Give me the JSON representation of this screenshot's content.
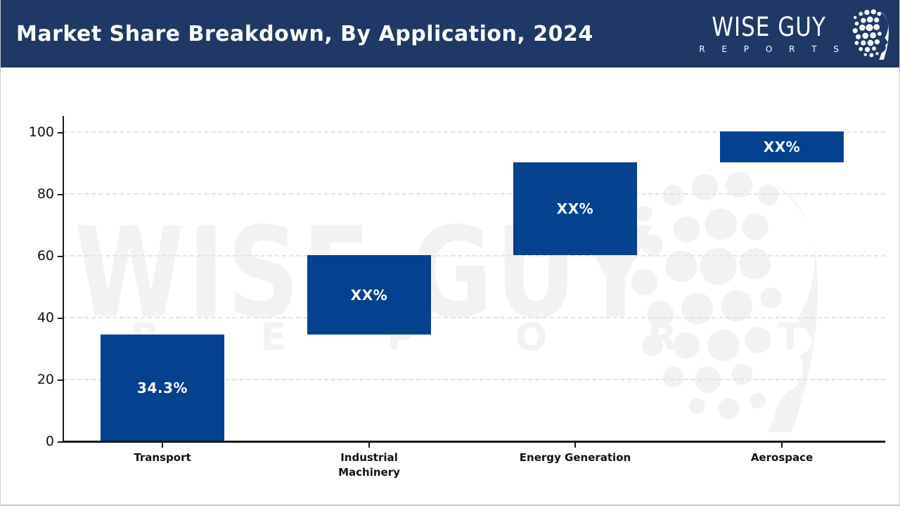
{
  "header": {
    "title": "Market Share Breakdown, By Application, 2024",
    "logo": {
      "name": "WISE GUY",
      "tagline": "R E P O R T S",
      "head_icon": "dotted-head-profile"
    }
  },
  "watermark": {
    "line1": "WISE GUY",
    "line2": "R E P O R T S",
    "head_icon": "dotted-head-profile"
  },
  "colors": {
    "header_bg": "#1f3866",
    "bar": "#04418f",
    "bar_label": "#ffffff",
    "gridline": "#e2e2e2",
    "axis": "#1a1a1a",
    "watermark": "#f2f2f3",
    "page_bg": "#ffffff"
  },
  "chart_data": {
    "type": "bar",
    "variant": "waterfall",
    "title": "Market Share Breakdown, By Application, 2024",
    "categories": [
      "Transport",
      "Industrial\nMachinery",
      "Energy Generation",
      "Aerospace"
    ],
    "segments": [
      {
        "category": "Transport",
        "start": 0,
        "end": 34.3,
        "label": "34.3%"
      },
      {
        "category": "Industrial Machinery",
        "start": 34.3,
        "end": 60,
        "label": "XX%"
      },
      {
        "category": "Energy Generation",
        "start": 60,
        "end": 90,
        "label": "XX%"
      },
      {
        "category": "Aerospace",
        "start": 90,
        "end": 100,
        "label": "XX%"
      }
    ],
    "xlabel": "",
    "ylabel": "",
    "yticks": [
      0,
      20,
      40,
      60,
      80,
      100
    ],
    "ylim": [
      0,
      105
    ],
    "grid": "horizontal-dashed",
    "legend": false,
    "bar_color": "#04418f",
    "label_color": "#ffffff"
  }
}
